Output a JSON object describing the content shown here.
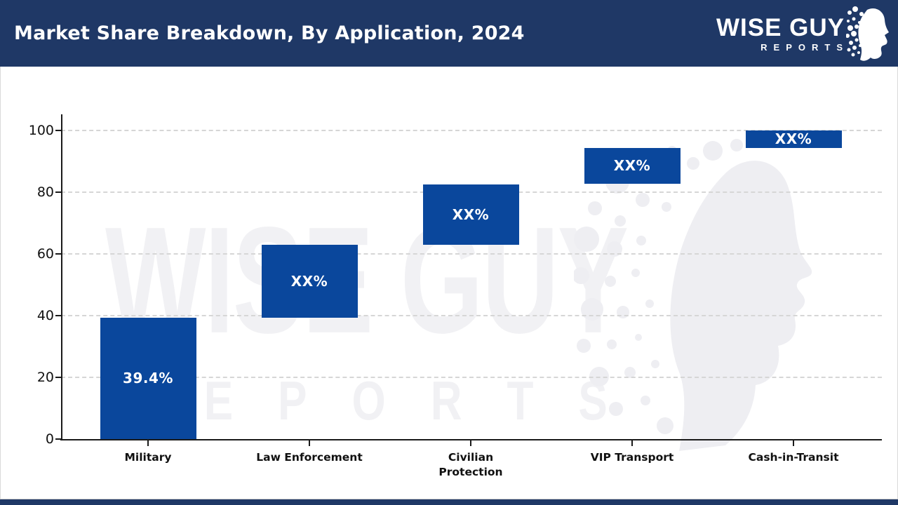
{
  "header": {
    "title": "Market Share Breakdown, By Application, 2024",
    "logo": {
      "brand_line1": "WISE GUY",
      "brand_line2": "REPORTS"
    }
  },
  "watermark": {
    "line1": "WISE GUY",
    "line2": "REPORTS"
  },
  "colors": {
    "header_bg": "#1f3866",
    "footer_bg": "#1f3866",
    "bar_fill": "#0a479c",
    "bar_label_text": "#ffffff",
    "grid_line": "#d6d6d6",
    "axis_line": "#1a1a1a",
    "tick_label_text": "#111111",
    "title_text": "#ffffff",
    "watermark_gray": "#f1f1f4"
  },
  "chart_data": {
    "type": "bar",
    "variant": "waterfall-floating-segments",
    "title": "Market Share Breakdown, By Application, 2024",
    "xlabel": "",
    "ylabel": "",
    "ylim": [
      0,
      105
    ],
    "yticks": [
      0,
      20,
      40,
      60,
      80,
      100
    ],
    "grid": "horizontal-dashed",
    "legend": "none",
    "categories": [
      "Military",
      "Law Enforcement",
      "Civilian Protection",
      "VIP Transport",
      "Cash-in-Transit"
    ],
    "category_label_lines": [
      [
        "Military"
      ],
      [
        "Law Enforcement"
      ],
      [
        "Civilian",
        "Protection"
      ],
      [
        "VIP Transport"
      ],
      [
        "Cash-in-Transit"
      ]
    ],
    "segments": [
      {
        "category": "Military",
        "start": 0,
        "end": 39.4,
        "label": "39.4%"
      },
      {
        "category": "Law Enforcement",
        "start": 39.4,
        "end": 63.0,
        "label": "XX%"
      },
      {
        "category": "Civilian Protection",
        "start": 63.0,
        "end": 82.6,
        "label": "XX%"
      },
      {
        "category": "VIP Transport",
        "start": 82.7,
        "end": 94.4,
        "label": "XX%"
      },
      {
        "category": "Cash-in-Transit",
        "start": 94.4,
        "end": 100.0,
        "label": "XX%"
      }
    ]
  }
}
